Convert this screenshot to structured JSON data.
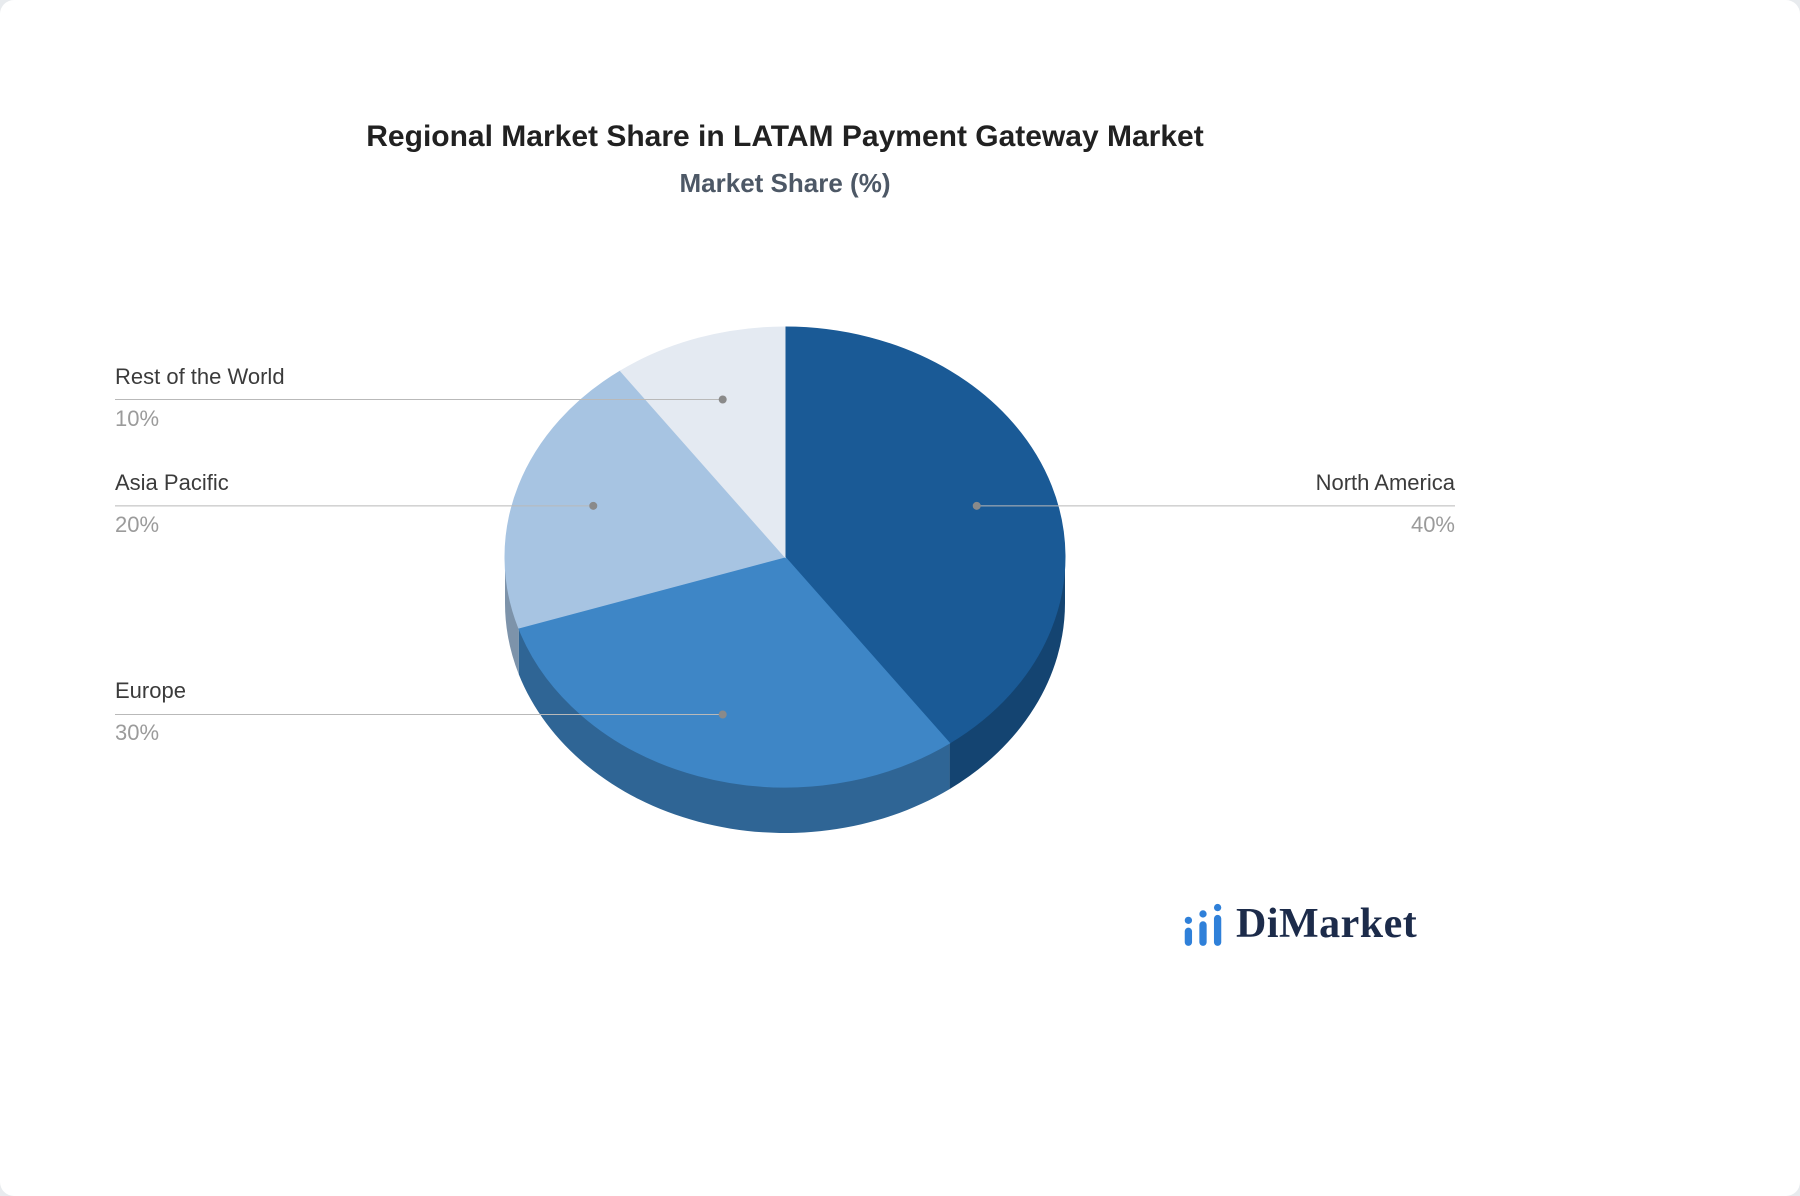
{
  "chart_data": {
    "type": "pie",
    "title": "Regional Market Share in LATAM Payment Gateway Market",
    "subtitle": "Market Share (%)",
    "unit": "%",
    "effect": "3d",
    "direction": "clockwise",
    "start_angle_deg": 0,
    "legend": "none",
    "slices": [
      {
        "label": "North America",
        "value": 40,
        "pct_label": "40%",
        "color": "#1a5a96"
      },
      {
        "label": "Europe",
        "value": 30,
        "pct_label": "30%",
        "color": "#3e86c6"
      },
      {
        "label": "Asia Pacific",
        "value": 20,
        "pct_label": "20%",
        "color": "#a7c4e2"
      },
      {
        "label": "Rest of the World",
        "value": 10,
        "pct_label": "10%",
        "color": "#e4eaf2"
      }
    ],
    "label_line_color": "#b9b9b9",
    "label_dot_color": "#8a8a8a"
  },
  "branding": {
    "logo_text": "DiMarket",
    "logo_color": "#1c2b4a",
    "icon_color": "#2f80d9"
  }
}
